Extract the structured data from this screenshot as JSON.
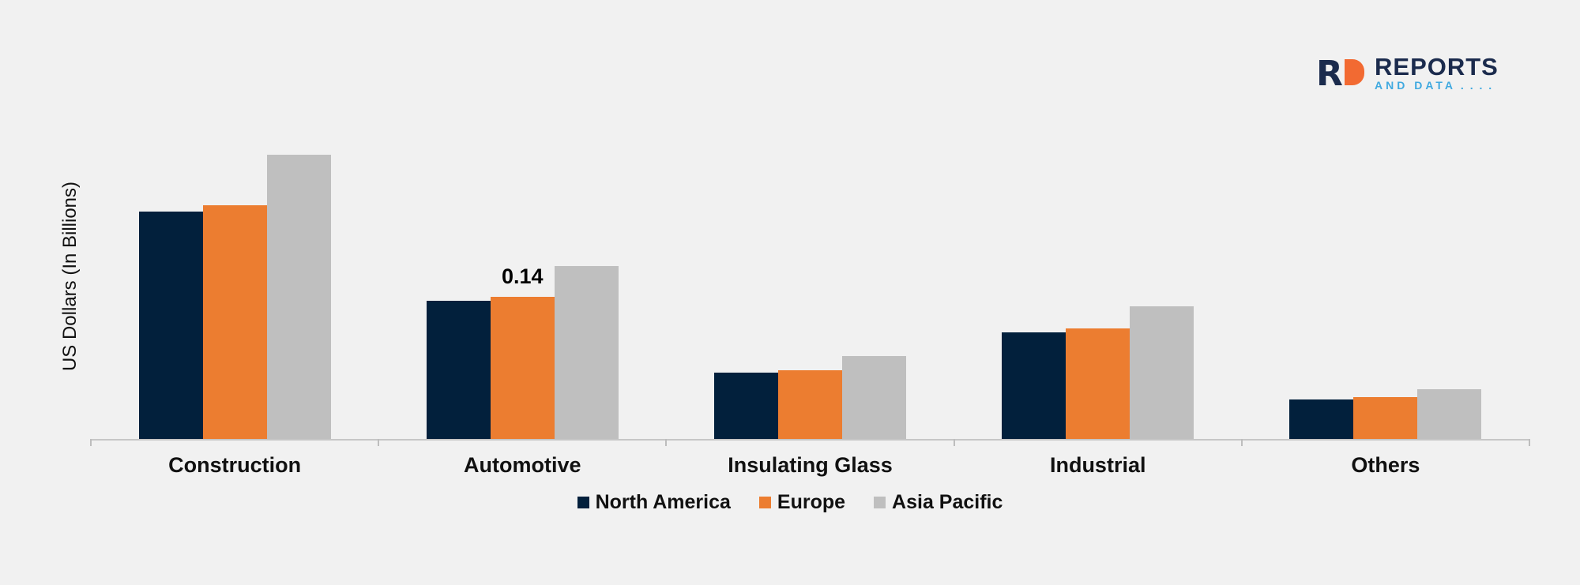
{
  "logo": {
    "brand_top": "REPORTS",
    "brand_bottom": "AND DATA",
    "dots": " . . . .",
    "mark_navy": "#1b2b4d",
    "mark_orange": "#f26a32",
    "text_blue": "#3fa9e0"
  },
  "chart_data": {
    "type": "bar",
    "title": "",
    "xlabel": "",
    "ylabel": "US Dollars (In Billions)",
    "categories": [
      "Construction",
      "Automotive",
      "Insulating Glass",
      "Industrial",
      "Others"
    ],
    "series": [
      {
        "name": "North America",
        "color": "#02203c",
        "values": [
          0.224,
          0.136,
          0.065,
          0.105,
          0.039
        ]
      },
      {
        "name": "Europe",
        "color": "#ec7d30",
        "values": [
          0.23,
          0.14,
          0.068,
          0.109,
          0.041
        ]
      },
      {
        "name": "Asia Pacific",
        "color": "#bfbfbf",
        "values": [
          0.28,
          0.17,
          0.082,
          0.131,
          0.049
        ]
      }
    ],
    "ylim": [
      0,
      0.35
    ],
    "data_labels": [
      {
        "series": "Europe",
        "category": "Automotive",
        "text": "0.14"
      }
    ],
    "legend_position": "bottom",
    "grid": false,
    "background": "#f1f1f1",
    "axis_color": "#c6c6c6"
  }
}
